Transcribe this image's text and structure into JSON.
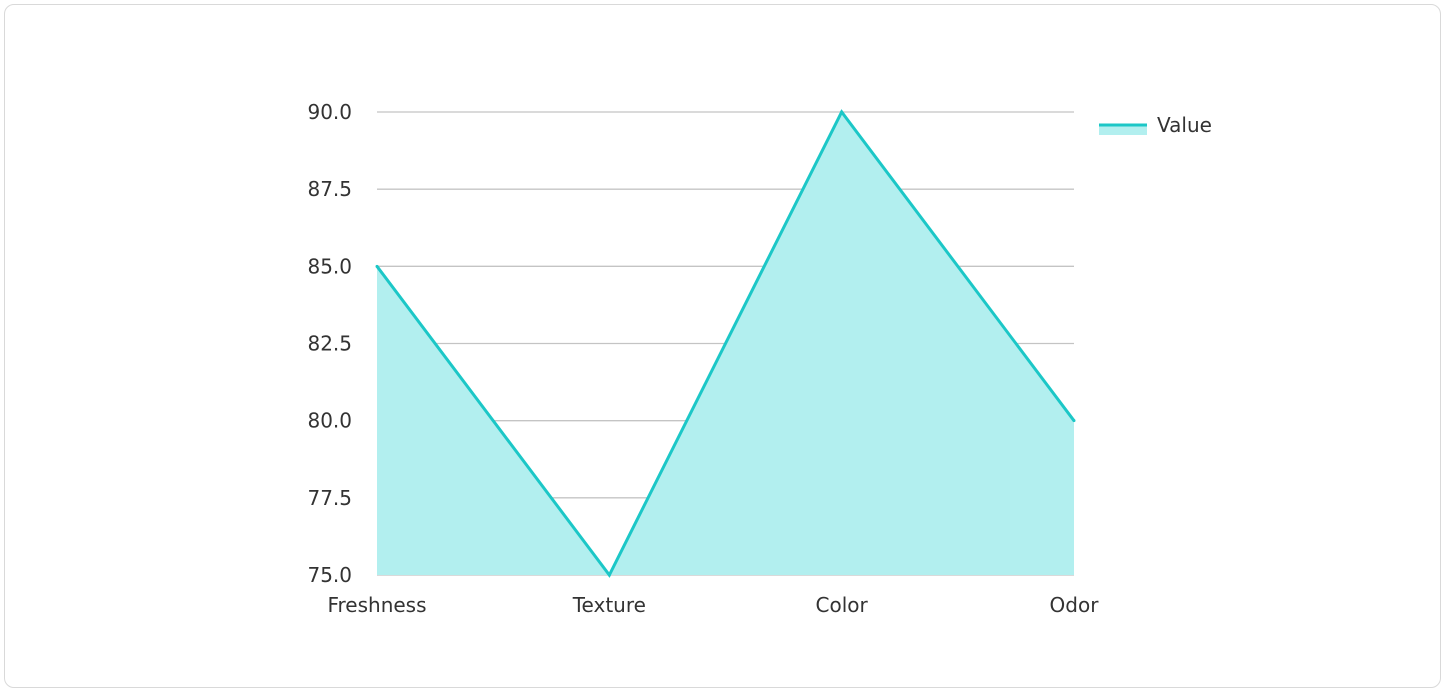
{
  "chart_data": {
    "type": "area",
    "categories": [
      "Freshness",
      "Texture",
      "Color",
      "Odor"
    ],
    "series": [
      {
        "name": "Value",
        "values": [
          85,
          75,
          90,
          80
        ]
      }
    ],
    "ylim": [
      75,
      90
    ],
    "yticks": [
      "75.0",
      "77.5",
      "80.0",
      "82.5",
      "85.0",
      "87.5",
      "90.0"
    ],
    "title": "",
    "xlabel": "",
    "ylabel": "",
    "grid": true,
    "legend_position": "top-right",
    "colors": {
      "line": "#1cc7c7",
      "fill": "#b2efef"
    }
  }
}
